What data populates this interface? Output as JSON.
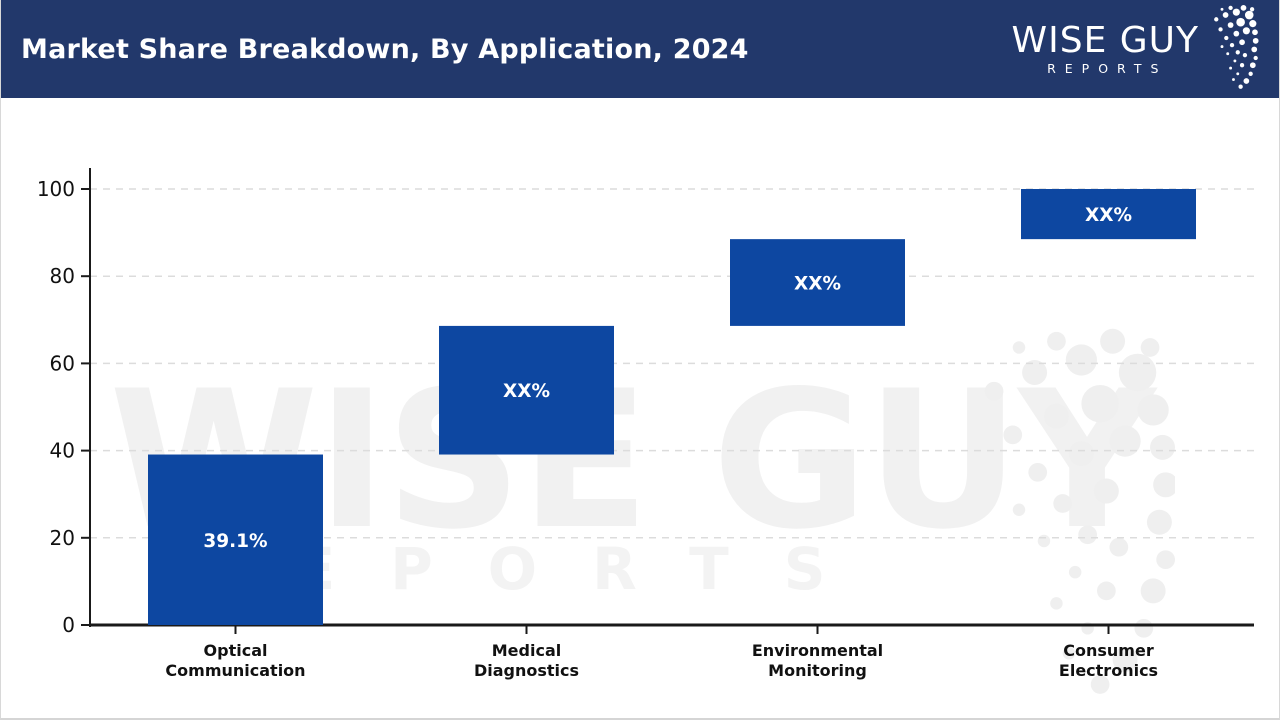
{
  "header": {
    "title": "Market Share Breakdown, By Application, 2024",
    "bg_color": "#22386B",
    "logo": {
      "line1": "WISE GUY",
      "line2": "REPORTS"
    }
  },
  "watermark": {
    "line1": "WISE GUY",
    "line2": "REPORTS"
  },
  "chart_data": {
    "type": "bar",
    "subtype": "waterfall",
    "title": "Market Share Breakdown, By Application, 2024",
    "categories": [
      "Optical Communication",
      "Medical Diagnostics",
      "Environmental Monitoring",
      "Consumer Electronics"
    ],
    "segments": [
      {
        "category": "Optical Communication",
        "start": 0,
        "end": 39.1,
        "label": "39.1%"
      },
      {
        "category": "Medical Diagnostics",
        "start": 39.1,
        "end": 68.6,
        "label": "XX%"
      },
      {
        "category": "Environmental Monitoring",
        "start": 68.6,
        "end": 88.5,
        "label": "XX%"
      },
      {
        "category": "Consumer Electronics",
        "start": 88.5,
        "end": 100,
        "label": "XX%"
      }
    ],
    "xlabel": "",
    "ylabel": "",
    "ylim": [
      0,
      100
    ],
    "yticks": [
      0,
      20,
      40,
      60,
      80,
      100
    ],
    "grid": "horizontal-dashed",
    "legend": "none",
    "bar_color": "#0d47a1",
    "bar_label_color": "#ffffff",
    "axis_color": "#1a1a1a",
    "gridline_color": "#dcdcdc"
  }
}
